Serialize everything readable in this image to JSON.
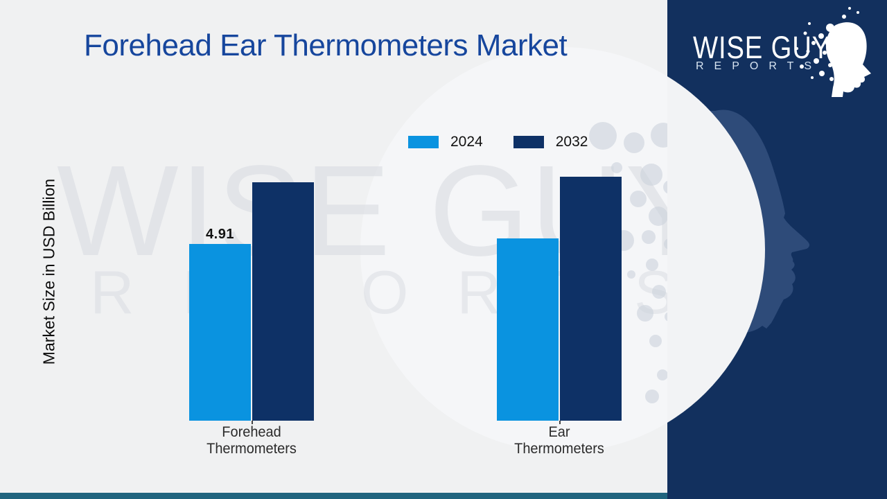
{
  "title": "Forehead Ear Thermometers Market",
  "watermark": {
    "line1": "WISE GUY",
    "line2": "REPORTS"
  },
  "logo": {
    "line1": "WISE GUY",
    "line2": "REPORTS"
  },
  "colors": {
    "series_2024": "#0a93e0",
    "series_2032": "#0e3166",
    "panel_navy": "#12305e",
    "panel_face": "#2e4b79",
    "title_blue": "#16469d",
    "teal_strip": "#20647e",
    "background": "#f0f1f2"
  },
  "chart_data": {
    "type": "bar",
    "title": "Forehead Ear Thermometers Market",
    "categories": [
      "Forehead Thermometers",
      "Ear Thermometers"
    ],
    "series": [
      {
        "name": "2024",
        "color": "#0a93e0",
        "values": [
          4.91,
          5.06
        ],
        "labels": [
          "4.91",
          null
        ]
      },
      {
        "name": "2032",
        "color": "#0e3166",
        "values": [
          6.62,
          6.78
        ],
        "labels": [
          null,
          null
        ]
      }
    ],
    "xlabel": "",
    "ylabel": "Market Size in USD Billion",
    "ylim": [
      0,
      7.5
    ],
    "grid": false,
    "legend_position": "top-center",
    "value_labels_visible": [
      "4.91"
    ]
  }
}
